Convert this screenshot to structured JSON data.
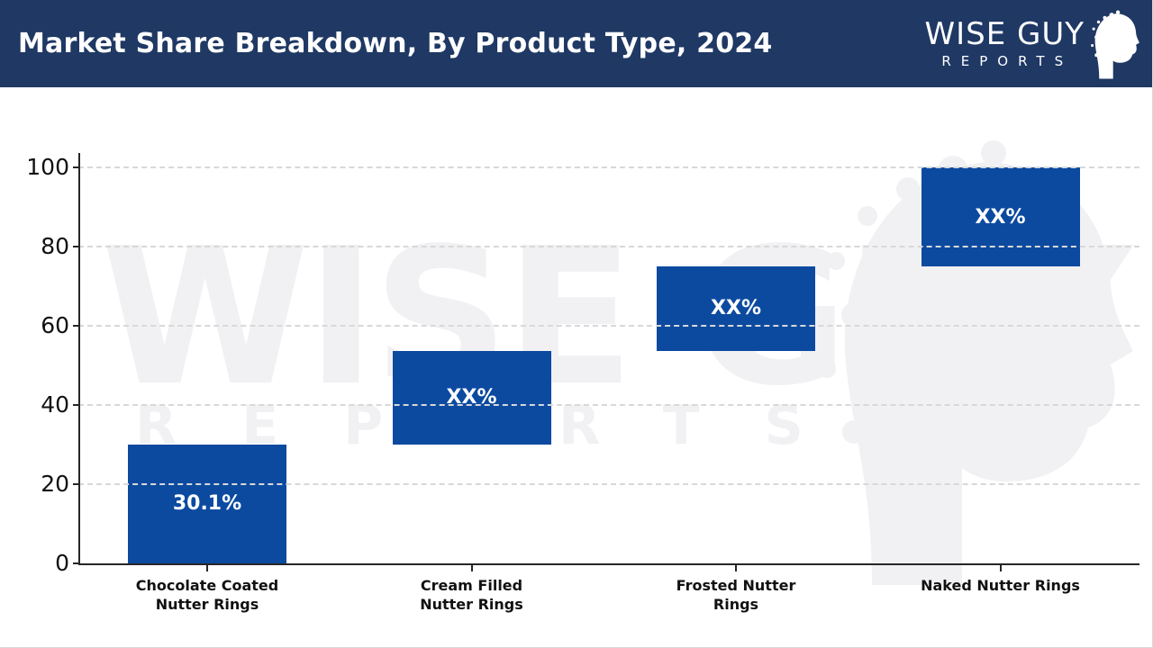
{
  "page": {
    "background": "#ffffff",
    "edge_border_color": "#d9d9d9"
  },
  "header": {
    "background_color": "#1f3864",
    "title": "Market Share Breakdown, By Product Type, 2024",
    "logo": {
      "name": "WISE GUY",
      "sub": "REPORTS"
    }
  },
  "watermark": {
    "big_text": "WISE GUY",
    "sub_text": "REPORTS"
  },
  "chart_data": {
    "type": "bar",
    "subtype": "waterfall",
    "title": "Market Share Breakdown, By Product Type, 2024",
    "categories": [
      "Chocolate Coated Nutter Rings",
      "Cream Filled Nutter Rings",
      "Frosted Nutter Rings",
      "Naked Nutter Rings"
    ],
    "bars": [
      {
        "category": "Chocolate Coated Nutter Rings",
        "label_lines": [
          "Chocolate Coated",
          "Nutter Rings"
        ],
        "start": 0,
        "end": 30.1,
        "value_label": "30.1%"
      },
      {
        "category": "Cream Filled Nutter Rings",
        "label_lines": [
          "Cream Filled",
          "Nutter Rings"
        ],
        "start": 30.1,
        "end": 53.7,
        "value_label": "XX%"
      },
      {
        "category": "Frosted Nutter Rings",
        "label_lines": [
          "Frosted Nutter",
          "Rings"
        ],
        "start": 53.7,
        "end": 75,
        "value_label": "XX%"
      },
      {
        "category": "Naked Nutter Rings",
        "label_lines": [
          "Naked Nutter Rings"
        ],
        "start": 75,
        "end": 100,
        "value_label": "XX%"
      }
    ],
    "y_ticks": [
      0,
      20,
      40,
      60,
      80,
      100
    ],
    "ylim": [
      0,
      100
    ],
    "xlabel": "",
    "ylabel": "",
    "bar_color": "#0c4aa0",
    "value_label_color": "#ffffff",
    "axis_color": "#262626",
    "grid": {
      "axis": "y",
      "style": "dashed",
      "color": "#d8d8d8",
      "drawn_above_bars": true
    },
    "legend": null
  }
}
